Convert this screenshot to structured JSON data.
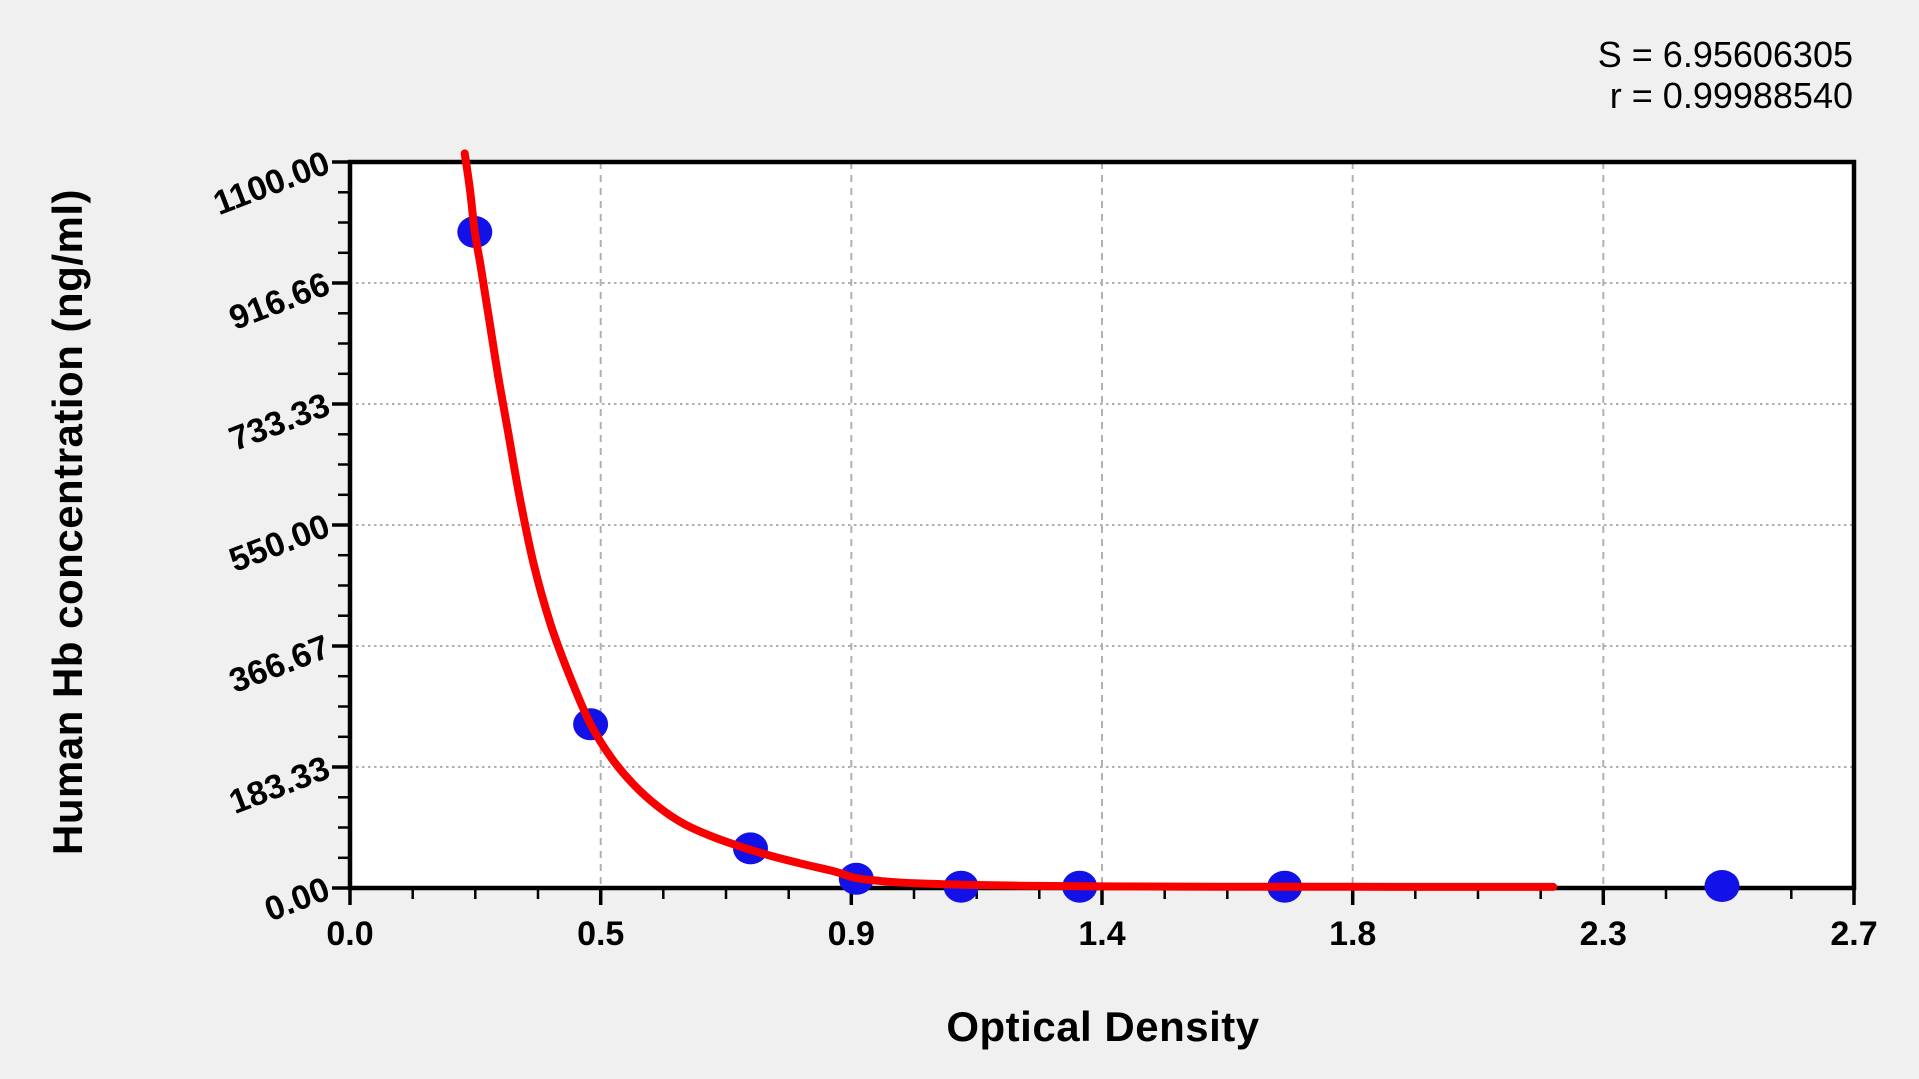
{
  "stats": {
    "s": "S = 6.95606305",
    "r": "r = 0.99988540"
  },
  "chart_data": {
    "type": "scatter",
    "title": "",
    "xlabel": "Optical Density",
    "ylabel": "Human Hb concentration (ng/ml)",
    "xlim": [
      0,
      2.7
    ],
    "ylim": [
      0,
      1100
    ],
    "grid": true,
    "legend": "none",
    "x_major_ticks": [
      0,
      0.45,
      0.9,
      1.35,
      1.8,
      2.25,
      2.7
    ],
    "x_tick_labels": [
      "0.0",
      "0.5",
      "0.9",
      "1.4",
      "1.8",
      "2.3",
      "2.7"
    ],
    "x_minor_per_major": 3,
    "y_major_ticks": [
      0,
      183.33,
      366.67,
      550,
      733.33,
      916.66,
      1100
    ],
    "y_tick_labels": [
      "0.00",
      "183.33",
      "366.67",
      "550.00",
      "733.33",
      "916.66",
      "1100.00"
    ],
    "y_minor_per_major": 3,
    "points": [
      {
        "od": 0.224,
        "conc": 994
      },
      {
        "od": 0.432,
        "conc": 248
      },
      {
        "od": 0.719,
        "conc": 60
      },
      {
        "od": 0.909,
        "conc": 14
      },
      {
        "od": 1.097,
        "conc": 2
      },
      {
        "od": 1.31,
        "conc": 2
      },
      {
        "od": 1.678,
        "conc": 2
      },
      {
        "od": 2.463,
        "conc": 3
      }
    ],
    "fit_curve_samples": [
      [
        0.206,
        1113
      ],
      [
        0.215,
        1060
      ],
      [
        0.224,
        994
      ],
      [
        0.235,
        940
      ],
      [
        0.25,
        860
      ],
      [
        0.266,
        775
      ],
      [
        0.284,
        690
      ],
      [
        0.305,
        590
      ],
      [
        0.33,
        490
      ],
      [
        0.36,
        400
      ],
      [
        0.395,
        320
      ],
      [
        0.432,
        248
      ],
      [
        0.47,
        196
      ],
      [
        0.51,
        156
      ],
      [
        0.555,
        122
      ],
      [
        0.6,
        97
      ],
      [
        0.65,
        78
      ],
      [
        0.7,
        63
      ],
      [
        0.75,
        50
      ],
      [
        0.81,
        37
      ],
      [
        0.87,
        25
      ],
      [
        0.909,
        15
      ],
      [
        0.96,
        10
      ],
      [
        1.02,
        7
      ],
      [
        1.1,
        5
      ],
      [
        1.2,
        3.5
      ],
      [
        1.35,
        2.5
      ],
      [
        1.55,
        2
      ],
      [
        1.8,
        1.8
      ],
      [
        2.0,
        1.7
      ],
      [
        2.16,
        1.6
      ]
    ],
    "colors": {
      "point": "#1212e8",
      "curve": "#f80000",
      "grid": "#b0b0b0",
      "axis": "#000000",
      "plot_bg": "#ffffff",
      "page_bg": "#f0f0f0",
      "text": "#000000"
    }
  }
}
